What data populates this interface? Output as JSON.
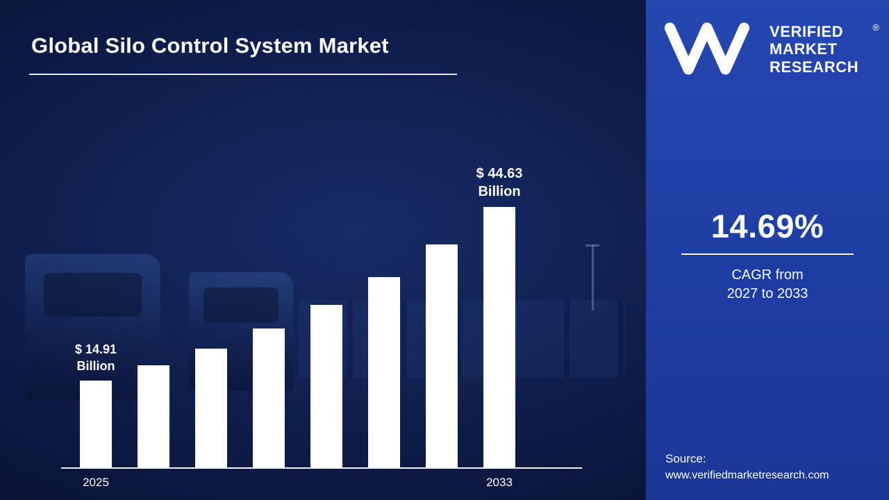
{
  "title": "Global Silo Control System Market",
  "colors": {
    "background": "#0e1d4c",
    "sidebar": "#1e3da4",
    "bar": "#ffffff",
    "text": "#ffffff"
  },
  "chart_data": {
    "type": "bar",
    "title": "Global Silo Control System Market",
    "unit": "USD Billion",
    "xlabel": "",
    "ylabel": "",
    "ylim": [
      0,
      48
    ],
    "grid": false,
    "legend": false,
    "bar_color": "#ffffff",
    "x_tick_labels_visible": [
      "2025",
      "2033"
    ],
    "values": [
      14.91,
      17.44,
      20.4,
      23.85,
      27.9,
      32.63,
      38.16,
      44.63
    ],
    "first_bar": {
      "year": "2025",
      "value": 14.91,
      "label_line1": "$ 14.91",
      "label_line2": "Billion"
    },
    "last_bar": {
      "year": "2033",
      "value": 44.63,
      "label_line1": "$ 44.63",
      "label_line2": "Billion"
    }
  },
  "sidebar": {
    "logo": {
      "monogram": "VM",
      "lines": [
        "VERIFIED",
        "MARKET",
        "RESEARCH"
      ],
      "registered_mark": "®"
    },
    "cagr": {
      "value": "14.69%",
      "caption_line1": "CAGR from",
      "caption_line2": "2027 to 2033"
    },
    "source": {
      "label": "Source:",
      "url": "www.verifiedmarketresearch.com"
    }
  }
}
